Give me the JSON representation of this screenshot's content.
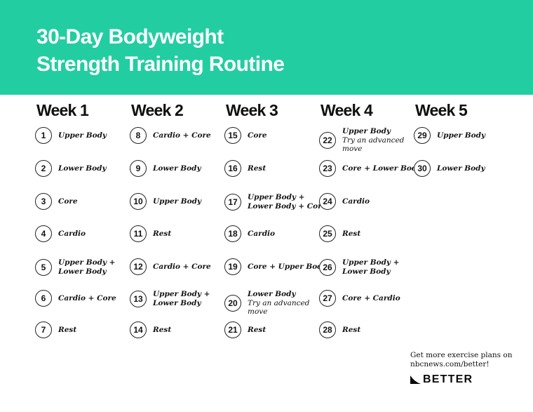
{
  "poster": {
    "title_line1": "30-Day Bodyweight",
    "title_line2": "Strength Training Routine",
    "header_bg": "#23CDA2",
    "title_color": "#FFFFFF",
    "text_color": "#111111"
  },
  "weeks": [
    {
      "label": "Week 1",
      "days": [
        {
          "num": "1",
          "label": "Upper Body"
        },
        {
          "num": "2",
          "label": "Lower Body"
        },
        {
          "num": "3",
          "label": "Core"
        },
        {
          "num": "4",
          "label": "Cardio"
        },
        {
          "num": "5",
          "label": "Upper Body + Lower Body"
        },
        {
          "num": "6",
          "label": "Cardio + Core"
        },
        {
          "num": "7",
          "label": "Rest"
        }
      ]
    },
    {
      "label": "Week 2",
      "days": [
        {
          "num": "8",
          "label": "Cardio + Core"
        },
        {
          "num": "9",
          "label": "Lower Body"
        },
        {
          "num": "10",
          "label": "Upper Body"
        },
        {
          "num": "11",
          "label": "Rest"
        },
        {
          "num": "12",
          "label": "Cardio + Core"
        },
        {
          "num": "13",
          "label": "Upper Body + Lower Body"
        },
        {
          "num": "14",
          "label": "Rest"
        }
      ]
    },
    {
      "label": "Week 3",
      "days": [
        {
          "num": "15",
          "label": "Core"
        },
        {
          "num": "16",
          "label": "Rest"
        },
        {
          "num": "17",
          "label": "Upper Body + Lower Body + Core"
        },
        {
          "num": "18",
          "label": "Cardio"
        },
        {
          "num": "19",
          "label": "Core + Upper Body"
        },
        {
          "num": "20",
          "label": "Lower Body",
          "note": "Try an advanced move"
        },
        {
          "num": "21",
          "label": "Rest"
        }
      ]
    },
    {
      "label": "Week 4",
      "days": [
        {
          "num": "22",
          "label": "Upper Body",
          "note": "Try an advanced move"
        },
        {
          "num": "23",
          "label": "Core + Lower Body"
        },
        {
          "num": "24",
          "label": "Cardio"
        },
        {
          "num": "25",
          "label": "Rest"
        },
        {
          "num": "26",
          "label": "Upper Body + Lower Body"
        },
        {
          "num": "27",
          "label": "Core + Cardio"
        },
        {
          "num": "28",
          "label": "Rest"
        }
      ]
    },
    {
      "label": "Week 5",
      "days": [
        {
          "num": "29",
          "label": "Upper Body"
        },
        {
          "num": "30",
          "label": "Lower Body"
        }
      ]
    }
  ],
  "footer": {
    "promo": "Get more exercise plans on nbcnews.com/better!",
    "brand": "BETTER",
    "brand_icon": "pennant-triangle-icon"
  }
}
